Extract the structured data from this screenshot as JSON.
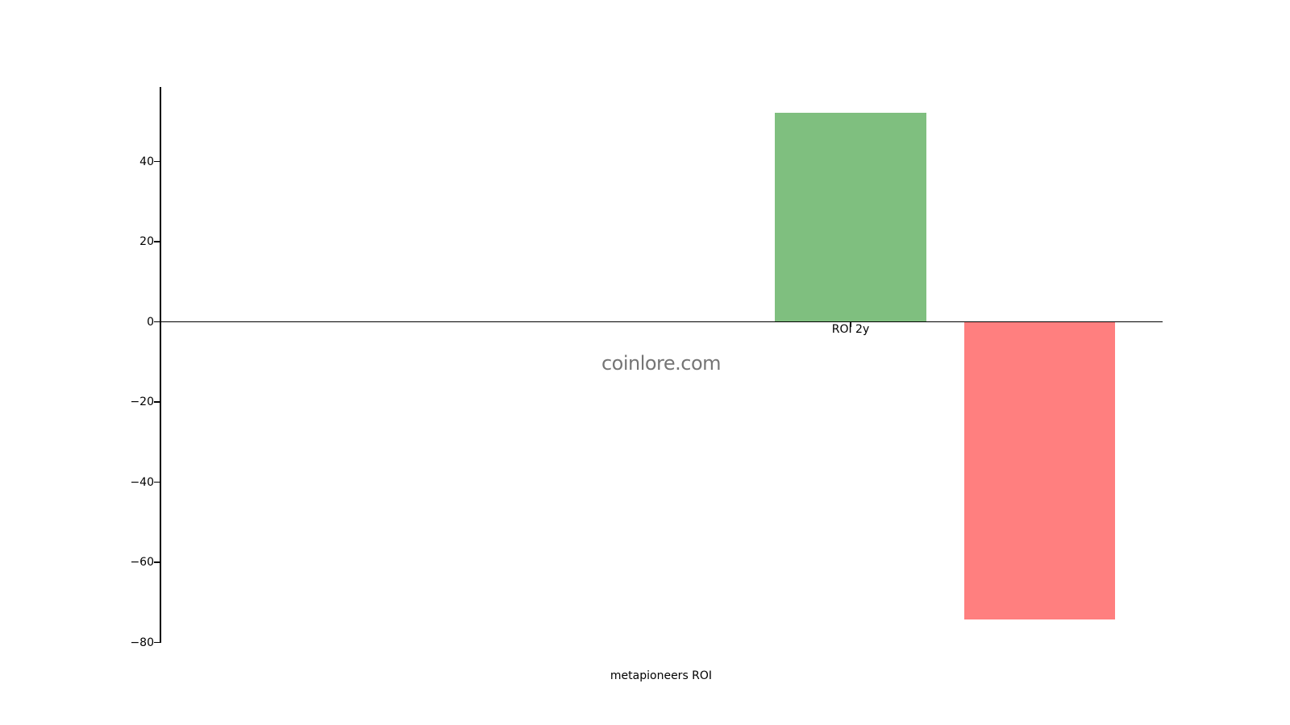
{
  "page": {
    "background": "#ffffff"
  },
  "chart_data": {
    "type": "bar",
    "title": "",
    "xlabel": "metapioneers ROI",
    "ylabel": "",
    "categories": [
      "ROI 2y",
      ""
    ],
    "series": [
      {
        "name": "metapioneers ROI",
        "values": [
          52.1,
          -74.2
        ]
      }
    ],
    "bar_colors": [
      "#7fbf7f",
      "#ff7f7f"
    ],
    "y_ticks": [
      {
        "value": 40,
        "label": "40"
      },
      {
        "value": 20,
        "label": "20"
      },
      {
        "value": 0,
        "label": "0"
      },
      {
        "value": -20,
        "label": "−20"
      },
      {
        "value": -40,
        "label": "−40"
      },
      {
        "value": -60,
        "label": "−60"
      },
      {
        "value": -80,
        "label": "−80"
      }
    ],
    "ylim": [
      -80.5,
      58.6
    ],
    "layout_hints": {
      "grid": "off",
      "legend": "none",
      "x_axis_position": "zero-line",
      "x_tick_labels_visible": [
        "ROI 2y"
      ],
      "axis_color": "#000000"
    }
  },
  "watermark": {
    "text": "coinlore.com",
    "color": "#757575"
  }
}
